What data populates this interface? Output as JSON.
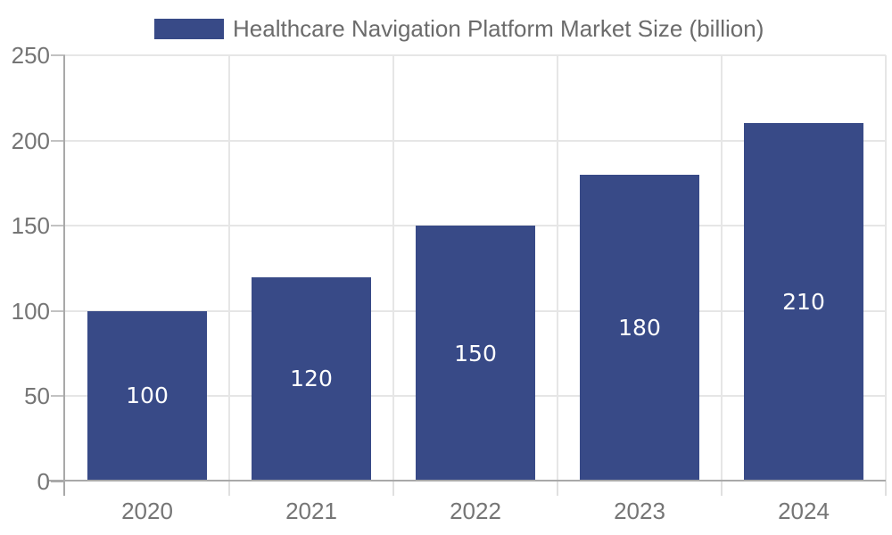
{
  "chart_data": {
    "type": "bar",
    "title": "Healthcare Navigation Platform Market Size (billion)",
    "categories": [
      "2020",
      "2021",
      "2022",
      "2023",
      "2024"
    ],
    "values": [
      100,
      120,
      150,
      180,
      210
    ],
    "bar_labels": [
      "100",
      "120",
      "150",
      "180",
      "210"
    ],
    "xlabel": "",
    "ylabel": "",
    "ylim": [
      0,
      250
    ],
    "yticks": [
      0,
      50,
      100,
      150,
      200,
      250
    ],
    "grid": "horizontal major gridlines and vertical category-boundary gridlines",
    "legend_position": "top",
    "colors": {
      "bar": "#384A87",
      "gridline": "#E6E6E6",
      "axis": "#A9A9A9",
      "y_tick": "#C2C2C2",
      "x_tick": "#E0E0E0",
      "tick_label": "#757575",
      "legend_text": "#6B6B6B",
      "bar_label": "#FFFFFF",
      "background": "#FFFFFF"
    }
  }
}
